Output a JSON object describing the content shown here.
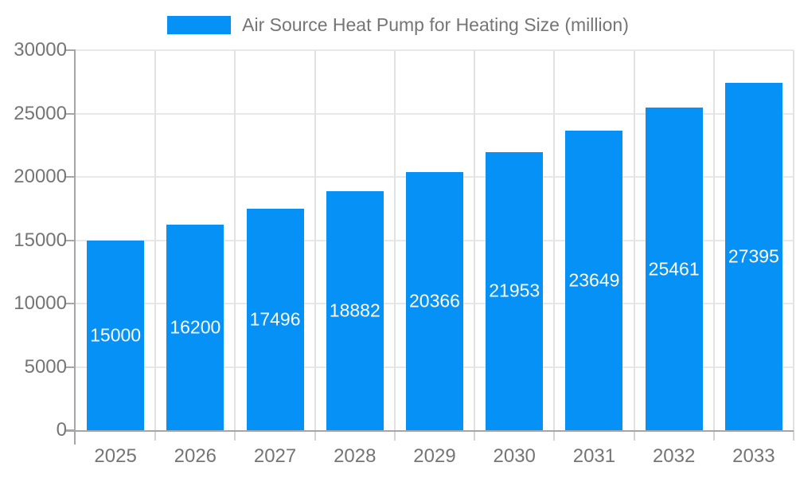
{
  "chart_data": {
    "type": "bar",
    "title": "",
    "series_name": "Air Source Heat Pump for Heating Size (million)",
    "categories": [
      "2025",
      "2026",
      "2027",
      "2028",
      "2029",
      "2030",
      "2031",
      "2032",
      "2033"
    ],
    "values": [
      15000,
      16200,
      17496,
      18882,
      20366,
      21953,
      23649,
      25461,
      27395
    ],
    "xlabel": "",
    "ylabel": "",
    "ylim": [
      0,
      30000
    ],
    "yticks": [
      0,
      5000,
      10000,
      15000,
      20000,
      25000,
      30000
    ],
    "grid": true,
    "legend_position": "top-center",
    "bar_color": "#0591f5",
    "value_label_color": "#ffffff",
    "axis_text_color": "#757575",
    "axis_line_color": "#a6a6a6",
    "gridline_color": "#e5e5e5"
  }
}
